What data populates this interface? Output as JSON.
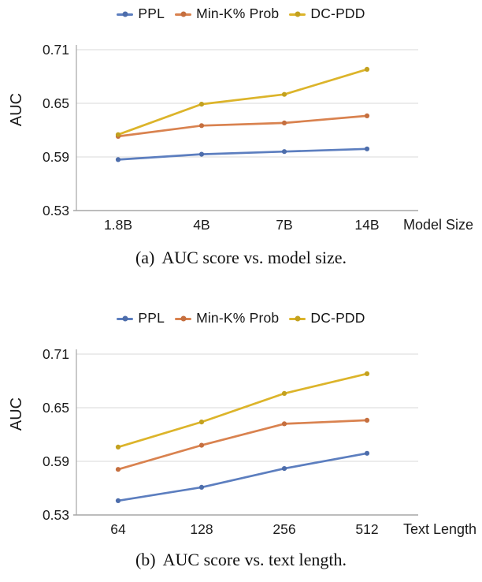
{
  "chart_data": [
    {
      "type": "line",
      "categories": [
        "1.8B",
        "4B",
        "7B",
        "14B"
      ],
      "series": [
        {
          "name": "PPL",
          "color": "#5c7ebf",
          "marker_color": "#4d6dab",
          "values": [
            0.587,
            0.593,
            0.596,
            0.599
          ]
        },
        {
          "name": "Min-K% Prob",
          "color": "#d9824f",
          "marker_color": "#c56f3f",
          "values": [
            0.613,
            0.625,
            0.628,
            0.636
          ]
        },
        {
          "name": "DC-PDD",
          "color": "#dcb42a",
          "marker_color": "#c3a11f",
          "values": [
            0.615,
            0.649,
            0.66,
            0.688
          ]
        }
      ],
      "xlabel": "Model Size",
      "ylabel": "AUC",
      "ylim": [
        0.53,
        0.71
      ],
      "yticks": [
        "0.53",
        "0.59",
        "0.65",
        "0.71"
      ],
      "grid": true,
      "legend_position": "top",
      "caption_prefix": "(a)",
      "caption": "AUC score vs. model size."
    },
    {
      "type": "line",
      "categories": [
        "64",
        "128",
        "256",
        "512"
      ],
      "series": [
        {
          "name": "PPL",
          "color": "#5c7ebf",
          "marker_color": "#4d6dab",
          "values": [
            0.546,
            0.561,
            0.582,
            0.599
          ]
        },
        {
          "name": "Min-K% Prob",
          "color": "#d9824f",
          "marker_color": "#c56f3f",
          "values": [
            0.581,
            0.608,
            0.632,
            0.636
          ]
        },
        {
          "name": "DC-PDD",
          "color": "#dcb42a",
          "marker_color": "#c3a11f",
          "values": [
            0.606,
            0.634,
            0.666,
            0.688
          ]
        }
      ],
      "xlabel": "Text Length",
      "ylabel": "AUC",
      "ylim": [
        0.53,
        0.71
      ],
      "yticks": [
        "0.53",
        "0.59",
        "0.65",
        "0.71"
      ],
      "grid": true,
      "legend_position": "top",
      "caption_prefix": "(b)",
      "caption": "AUC score vs. text length."
    }
  ],
  "colors": {
    "grid": "#d8d8d8",
    "axis": "#a5a5a5",
    "text": "#1b1b1b"
  }
}
